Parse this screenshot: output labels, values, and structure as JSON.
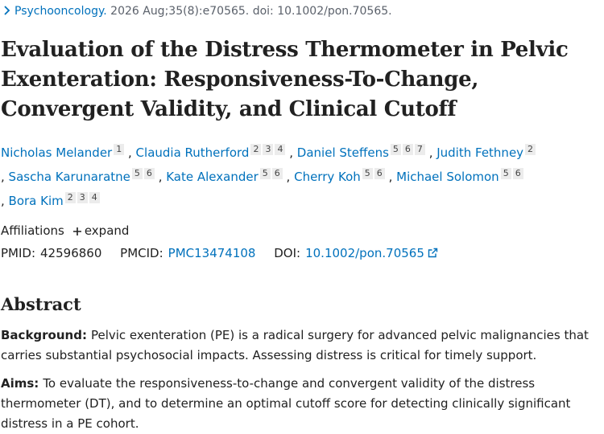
{
  "journal": {
    "name": "Psychooncology.",
    "citation": "2026 Aug;35(8):e70565. doi: 10.1002/pon.70565."
  },
  "title": "Evaluation of the Distress Thermometer in Pelvic Exenteration: Responsiveness-To-Change, Convergent Validity, and Clinical Cutoff",
  "authors": [
    {
      "name": "Nicholas Melander",
      "affiliations": [
        "1"
      ]
    },
    {
      "name": "Claudia Rutherford",
      "affiliations": [
        "2",
        "3",
        "4"
      ]
    },
    {
      "name": "Daniel Steffens",
      "affiliations": [
        "5",
        "6",
        "7"
      ]
    },
    {
      "name": "Judith Fethney",
      "affiliations": [
        "2"
      ]
    },
    {
      "name": "Sascha Karunaratne",
      "affiliations": [
        "5",
        "6"
      ]
    },
    {
      "name": "Kate Alexander",
      "affiliations": [
        "5",
        "6"
      ]
    },
    {
      "name": "Cherry Koh",
      "affiliations": [
        "5",
        "6"
      ]
    },
    {
      "name": "Michael Solomon",
      "affiliations": [
        "5",
        "6"
      ]
    },
    {
      "name": "Bora Kim",
      "affiliations": [
        "2",
        "3",
        "4"
      ]
    }
  ],
  "affiliations": {
    "label": "Affiliations",
    "toggle": "expand"
  },
  "ids": {
    "pmid_label": "PMID:",
    "pmid": "42596860",
    "pmcid_label": "PMCID:",
    "pmcid": "PMC13474108",
    "doi_label": "DOI:",
    "doi": "10.1002/pon.70565"
  },
  "abstract": {
    "heading": "Abstract",
    "sections": [
      {
        "label": "Background:",
        "text": "Pelvic exenteration (PE) is a radical surgery for advanced pelvic malignancies that carries substantial psychosocial impacts. Assessing distress is critical for timely support."
      },
      {
        "label": "Aims:",
        "text": "To evaluate the responsiveness-to-change and convergent validity of the distress thermometer (DT), and to determine an optimal cutoff score for detecting clinically significant distress in a PE cohort."
      }
    ]
  }
}
